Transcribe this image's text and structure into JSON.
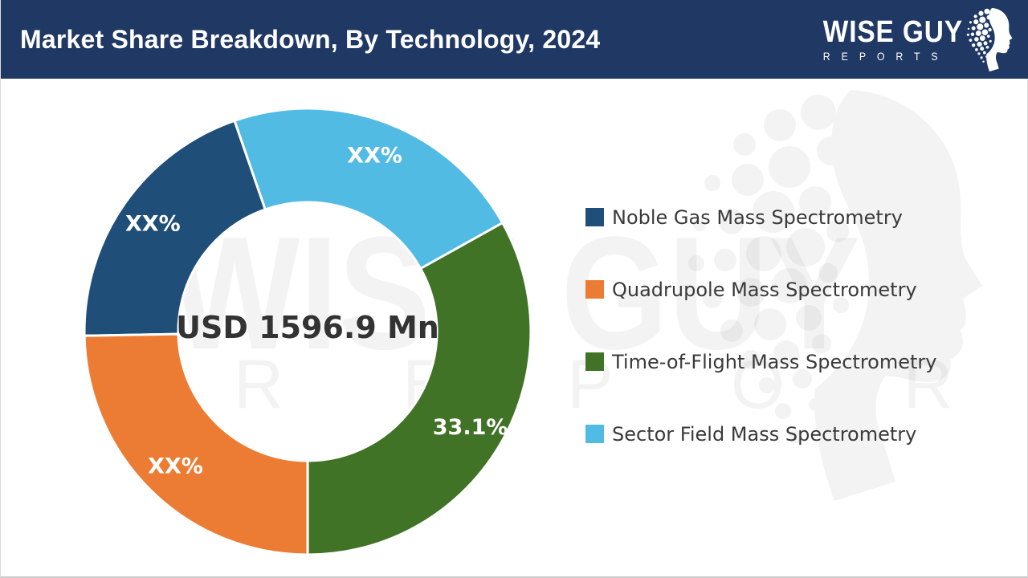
{
  "header": {
    "title": "Market Share Breakdown, By Technology, 2024",
    "bg_color": "#1F3864",
    "logo": {
      "name": "WISE GUY",
      "tagline": "R E P O R T S"
    }
  },
  "chart_data": {
    "type": "pie",
    "subtype": "donut",
    "title": "Market Share Breakdown, By Technology, 2024",
    "center_label": "USD 1596.9 Mn",
    "start_angle_deg": 109.1,
    "direction": "counterclockwise",
    "legend_position": "right",
    "inner_radius_ratio": 0.58,
    "series": [
      {
        "name": "Noble Gas Mass Spectrometry",
        "value": 20.0,
        "label": "XX%",
        "color": "#1F4E79"
      },
      {
        "name": "Quadrupole Mass Spectrometry",
        "value": 24.7,
        "label": "XX%",
        "color": "#EC7C33"
      },
      {
        "name": "Time-of-Flight Mass Spectrometry",
        "value": 33.1,
        "label": "33.1%",
        "color": "#417326"
      },
      {
        "name": "Sector Field Mass Spectrometry",
        "value": 22.2,
        "label": "XX%",
        "color": "#52BBE3"
      }
    ]
  },
  "watermark": {
    "name": "WISE GUY",
    "tagline": "R E P O R T S"
  }
}
